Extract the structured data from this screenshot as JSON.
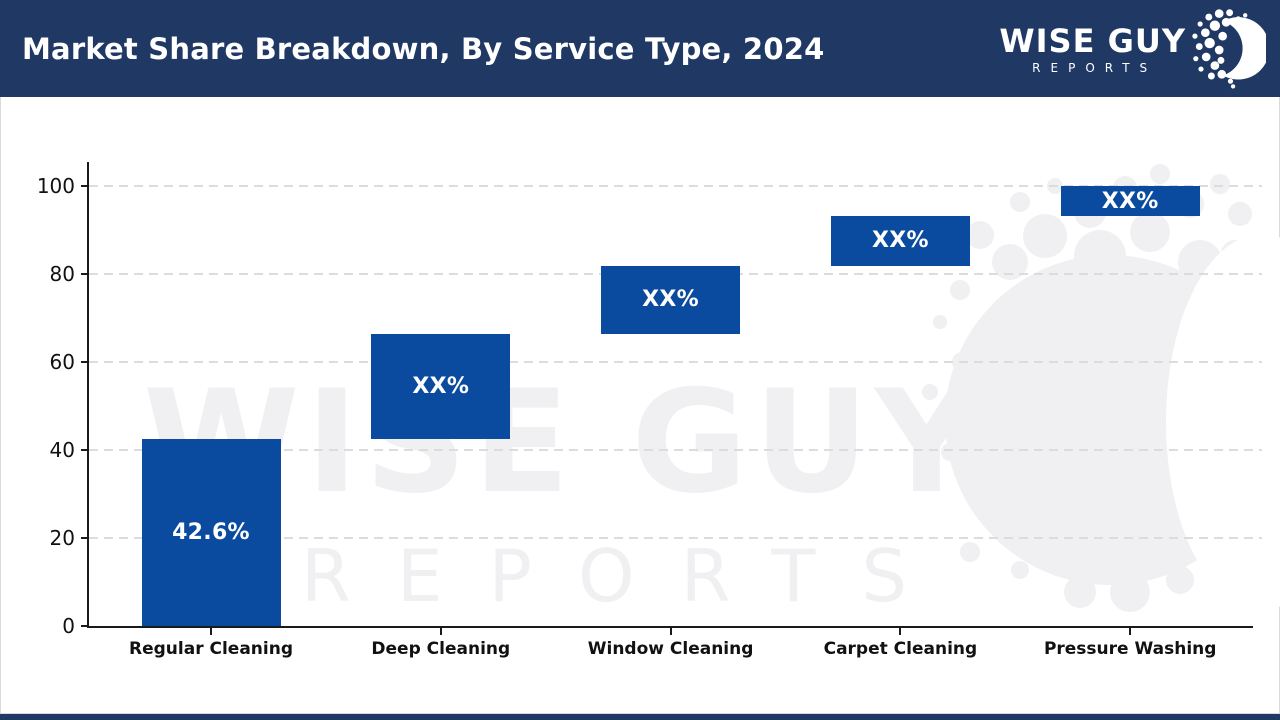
{
  "header": {
    "title": "Market Share Breakdown, By Service Type, 2024",
    "logo": {
      "line1": "WISE GUY",
      "line2": "REPORTS"
    }
  },
  "watermark": {
    "line1": "WISE GUY",
    "line2": "REPORTS"
  },
  "colors": {
    "navy": "#1f3864",
    "bar_blue": "#0b4b9f",
    "grid": "#dcdcdc",
    "axis": "#1a1a1a",
    "watermark": "#f0f0f2",
    "border": "#d9d9d9",
    "bar_label": "#ffffff"
  },
  "chart_data": {
    "type": "bar",
    "subtype": "waterfall",
    "title": "Market Share Breakdown, By Service Type, 2024",
    "categories": [
      "Regular Cleaning",
      "Deep Cleaning",
      "Window Cleaning",
      "Carpet Cleaning",
      "Pressure Washing"
    ],
    "series": [
      {
        "name": "Market share (%)",
        "segments": [
          {
            "category": "Regular Cleaning",
            "start": 0,
            "end": 42.6,
            "label": "42.6%"
          },
          {
            "category": "Deep Cleaning",
            "start": 42.6,
            "end": 66.3,
            "label": "XX%"
          },
          {
            "category": "Window Cleaning",
            "start": 66.3,
            "end": 81.9,
            "label": "XX%"
          },
          {
            "category": "Carpet Cleaning",
            "start": 81.9,
            "end": 93.1,
            "label": "XX%"
          },
          {
            "category": "Pressure Washing",
            "start": 93.1,
            "end": 100,
            "label": "XX%"
          }
        ]
      }
    ],
    "ylim": [
      0,
      100
    ],
    "yticks": [
      0,
      20,
      40,
      60,
      80,
      100
    ],
    "xlabel": "",
    "ylabel": "",
    "grid": "horizontal-dashed",
    "legend": "none"
  }
}
